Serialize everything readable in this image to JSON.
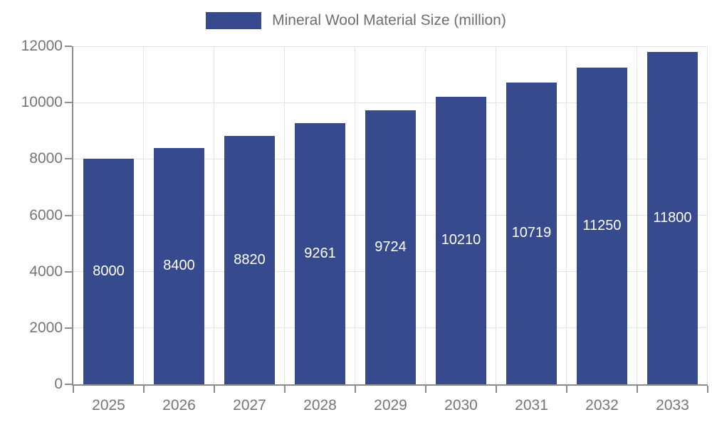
{
  "chart_data": {
    "type": "bar",
    "title": "",
    "legend_label": "Mineral Wool Material Size (million)",
    "legend_position": "top",
    "categories": [
      "2025",
      "2026",
      "2027",
      "2028",
      "2029",
      "2030",
      "2031",
      "2032",
      "2033"
    ],
    "series": [
      {
        "name": "Mineral Wool Material Size (million)",
        "values": [
          8000,
          8400,
          8820,
          9261,
          9724,
          10210,
          10719,
          11250,
          11800
        ]
      }
    ],
    "value_labels": [
      "8000",
      "8400",
      "8820",
      "9261",
      "9724",
      "10210",
      "10719",
      "11250",
      "11800"
    ],
    "xlabel": "",
    "ylabel": "",
    "ylim": [
      0,
      12000
    ],
    "yticks": [
      0,
      2000,
      4000,
      6000,
      8000,
      10000,
      12000
    ],
    "grid": true,
    "colors": {
      "bar_fill": "#364A8D",
      "bar_value_text": "#FFFFFF",
      "axis_line": "#8C8C8C",
      "gridline": "#E3E3E6",
      "tick_label_text": "#757575",
      "legend_text": "#6E6E6E",
      "background": "#FFFFFF"
    }
  }
}
